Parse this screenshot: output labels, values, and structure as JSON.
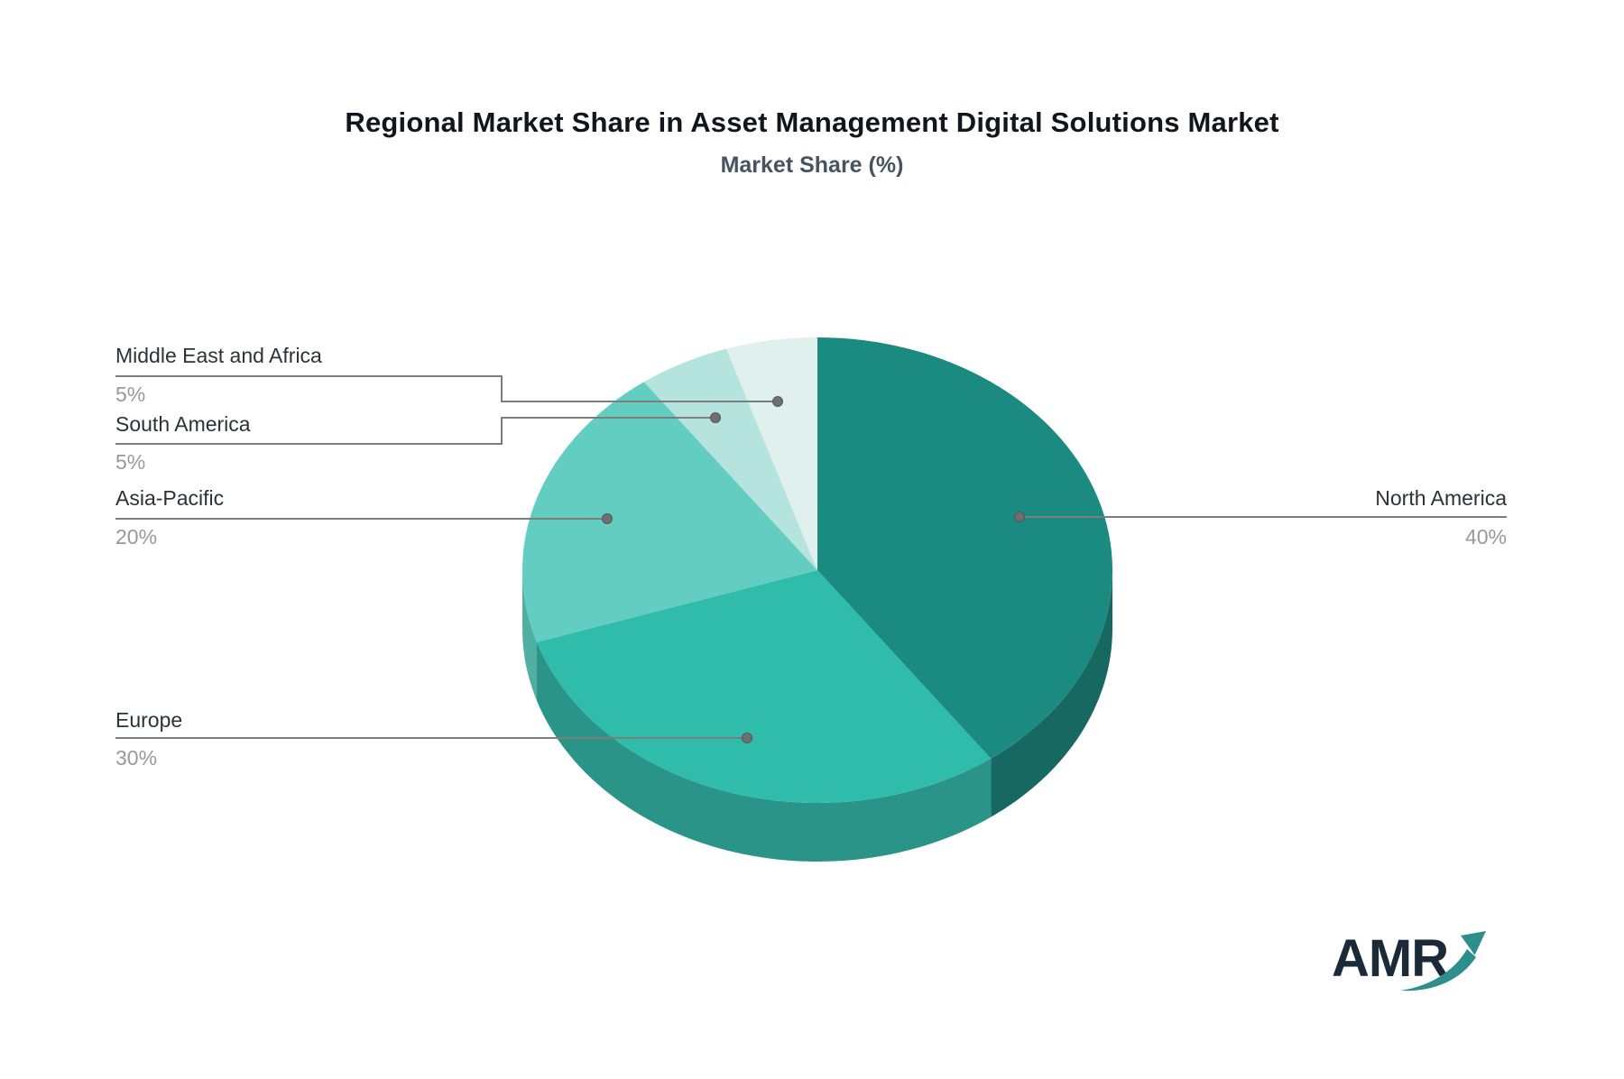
{
  "title": "Regional Market Share in Asset Management Digital Solutions Market",
  "subtitle": "Market Share (%)",
  "logo": {
    "text": "AMR",
    "arrow_color": "#2e8e8b",
    "text_color": "#1b2a38"
  },
  "style": {
    "background": "#ffffff",
    "callout_line_color": "#7d7d7d",
    "callout_dot_color": "#6f6f6f",
    "label_color": "#2b3238",
    "value_color": "#98999b"
  },
  "chart_data": {
    "type": "pie",
    "title": "Regional Market Share in Asset Management Digital Solutions Market",
    "subtitle": "Market Share (%)",
    "unit": "%",
    "effect": "3d",
    "start_angle_deg": 0,
    "direction": "clockwise",
    "legend_position": "none",
    "labels_layout": "callout-lines",
    "slices": [
      {
        "label": "North America",
        "value": 40,
        "display": "40%",
        "color": "#1b8a80",
        "side_color": "#166860",
        "label_side": "right"
      },
      {
        "label": "Europe",
        "value": 30,
        "display": "30%",
        "color": "#2fbcab",
        "side_color": "#2a9489",
        "label_side": "left"
      },
      {
        "label": "Asia-Pacific",
        "value": 20,
        "display": "20%",
        "color": "#62cdc0",
        "side_color": "#50afa3",
        "label_side": "left"
      },
      {
        "label": "South America",
        "value": 5,
        "display": "5%",
        "color": "#b5e3dd",
        "label_side": "left"
      },
      {
        "label": "Middle East and Africa",
        "value": 5,
        "display": "5%",
        "color": "#dff0ed",
        "label_side": "left"
      }
    ]
  }
}
